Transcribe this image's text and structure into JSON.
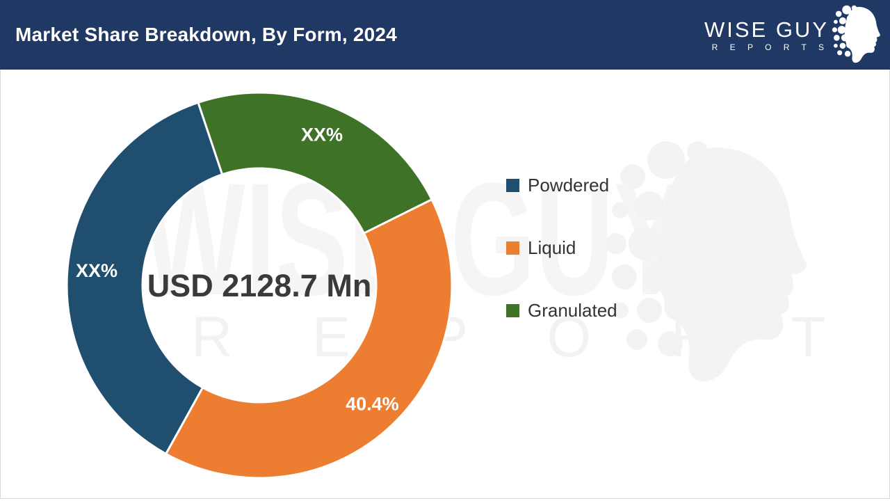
{
  "header": {
    "title": "Market Share Breakdown, By Form, 2024",
    "logo": {
      "line1": "WISE GUY",
      "line2": "R E P O R T S"
    }
  },
  "watermark": {
    "line1": "WISE GUY",
    "line2": "R E P O R T S"
  },
  "chart_data": {
    "type": "pie",
    "subtype": "donut",
    "title": "Market Share Breakdown, By Form, 2024",
    "center_label": "USD 2128.7 Mn",
    "units": "percent share",
    "legend_position": "right",
    "start_angle_deg": -151,
    "draw_order": [
      0,
      2,
      1
    ],
    "slices": [
      {
        "name": "Powdered",
        "value": 36.8,
        "label": "XX%",
        "color": "#1f4e6e"
      },
      {
        "name": "Liquid",
        "value": 40.4,
        "label": "40.4%",
        "color": "#ed7d31"
      },
      {
        "name": "Granulated",
        "value": 22.8,
        "label": "XX%",
        "color": "#3e7327"
      }
    ],
    "colors": {
      "header_bg": "#1f3864",
      "center_text": "#3a3a3a",
      "legend_text": "#333333",
      "watermark": "#f3f3f4",
      "slice_separator": "#ffffff"
    }
  }
}
